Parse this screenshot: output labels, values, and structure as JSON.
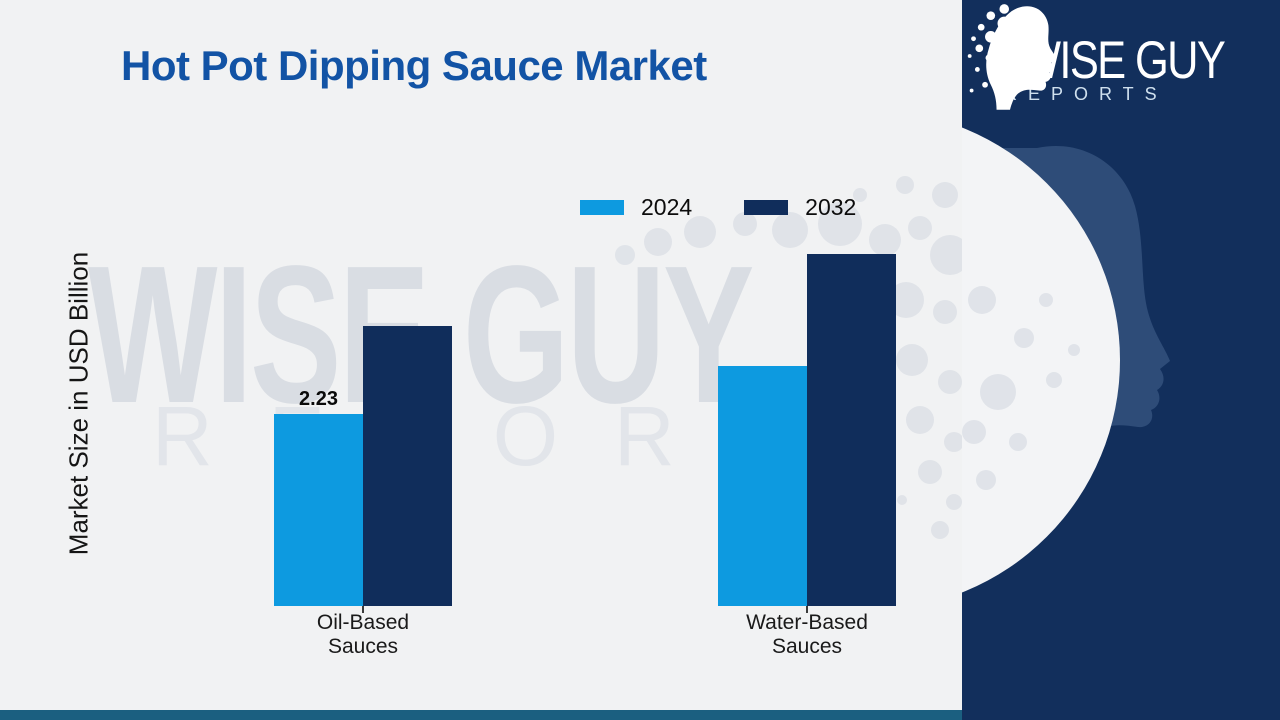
{
  "page": {
    "background": "#f1f2f3"
  },
  "header": {
    "title": "Hot Pot Dipping Sauce Market",
    "title_color": "#1253a5"
  },
  "brand": {
    "name": "WISE GUY",
    "sub": "REPORTS",
    "panel_color": "#122f5c",
    "face_color": "#2e4c78",
    "accent_teal": "#1b5f80",
    "logo_text_color": "#ffffff"
  },
  "watermark": {
    "line1": "WISE GUY",
    "line2": "REPORTS"
  },
  "chart": {
    "ylabel": "Market Size in USD Billion",
    "legend": [
      {
        "label": "2024",
        "color": "#0d9ae0"
      },
      {
        "label": "2032",
        "color": "#102d5b"
      }
    ],
    "categories_display": [
      {
        "line1": "Oil-Based",
        "line2": "Sauces"
      },
      {
        "line1": "Water-Based",
        "line2": "Sauces"
      }
    ],
    "bar_label": "2.23"
  },
  "chart_data": {
    "type": "bar",
    "title": "Hot Pot Dipping Sauce Market",
    "xlabel": "",
    "ylabel": "Market Size in USD Billion",
    "categories": [
      "Oil-Based Sauces",
      "Water-Based Sauces"
    ],
    "series": [
      {
        "name": "2024",
        "color": "#0d9ae0",
        "values": [
          2.23,
          2.79
        ]
      },
      {
        "name": "2032",
        "color": "#102d5b",
        "values": [
          3.25,
          4.09
        ]
      }
    ],
    "data_labels": [
      {
        "series": "2024",
        "category": "Oil-Based Sauces",
        "text": "2.23"
      }
    ],
    "ylim": [
      0,
      4.3
    ],
    "grid": false,
    "legend_position": "top-center",
    "y_axis_ticks_visible": false
  }
}
